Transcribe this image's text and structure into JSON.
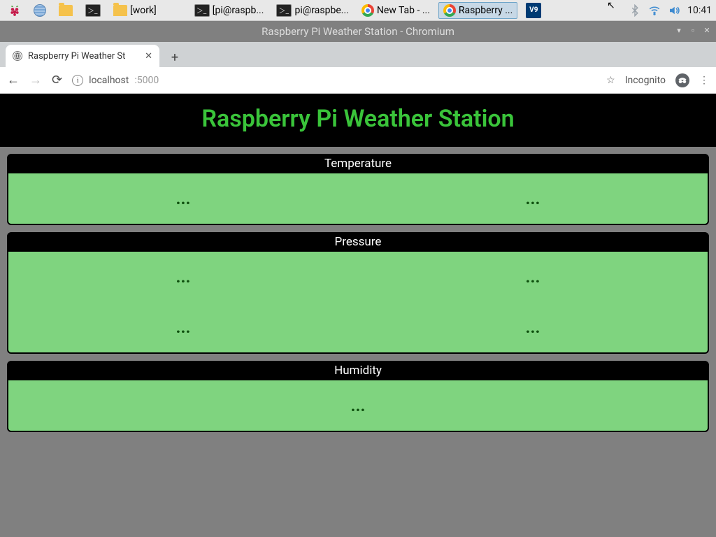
{
  "taskbar": {
    "items": [
      {
        "name": "rpi-menu",
        "label": ""
      },
      {
        "name": "web-browser",
        "label": ""
      },
      {
        "name": "file-manager-1",
        "label": ""
      },
      {
        "name": "terminal-launcher",
        "label": ""
      },
      {
        "name": "folder-work",
        "label": "[work]"
      },
      {
        "name": "term-session-1",
        "label": "[pi@raspb..."
      },
      {
        "name": "term-session-2",
        "label": "pi@raspbe..."
      },
      {
        "name": "chromium-newtab",
        "label": "New Tab - ..."
      },
      {
        "name": "chromium-raspberry",
        "label": "Raspberry ..."
      },
      {
        "name": "vnc-server",
        "label": "V9"
      }
    ],
    "clock": "10:41"
  },
  "window": {
    "title": "Raspberry Pi Weather Station - Chromium"
  },
  "browser": {
    "tab": {
      "title": "Raspberry Pi Weather St"
    },
    "url_host": "localhost",
    "url_port": ":5000",
    "incognito_label": "Incognito"
  },
  "page": {
    "title": "Raspberry Pi Weather Station",
    "title_color": "#3ac43a",
    "header_bg": "#000000",
    "page_bg": "#808080",
    "card_bg": "#7fd47f",
    "card_title_color": "#ffffff",
    "placeholder": "...",
    "cards": [
      {
        "title": "Temperature",
        "rows": [
          [
            "...",
            "..."
          ]
        ]
      },
      {
        "title": "Pressure",
        "rows": [
          [
            "...",
            "..."
          ],
          [
            "...",
            "..."
          ]
        ]
      },
      {
        "title": "Humidity",
        "rows": [
          [
            "..."
          ]
        ]
      }
    ]
  }
}
